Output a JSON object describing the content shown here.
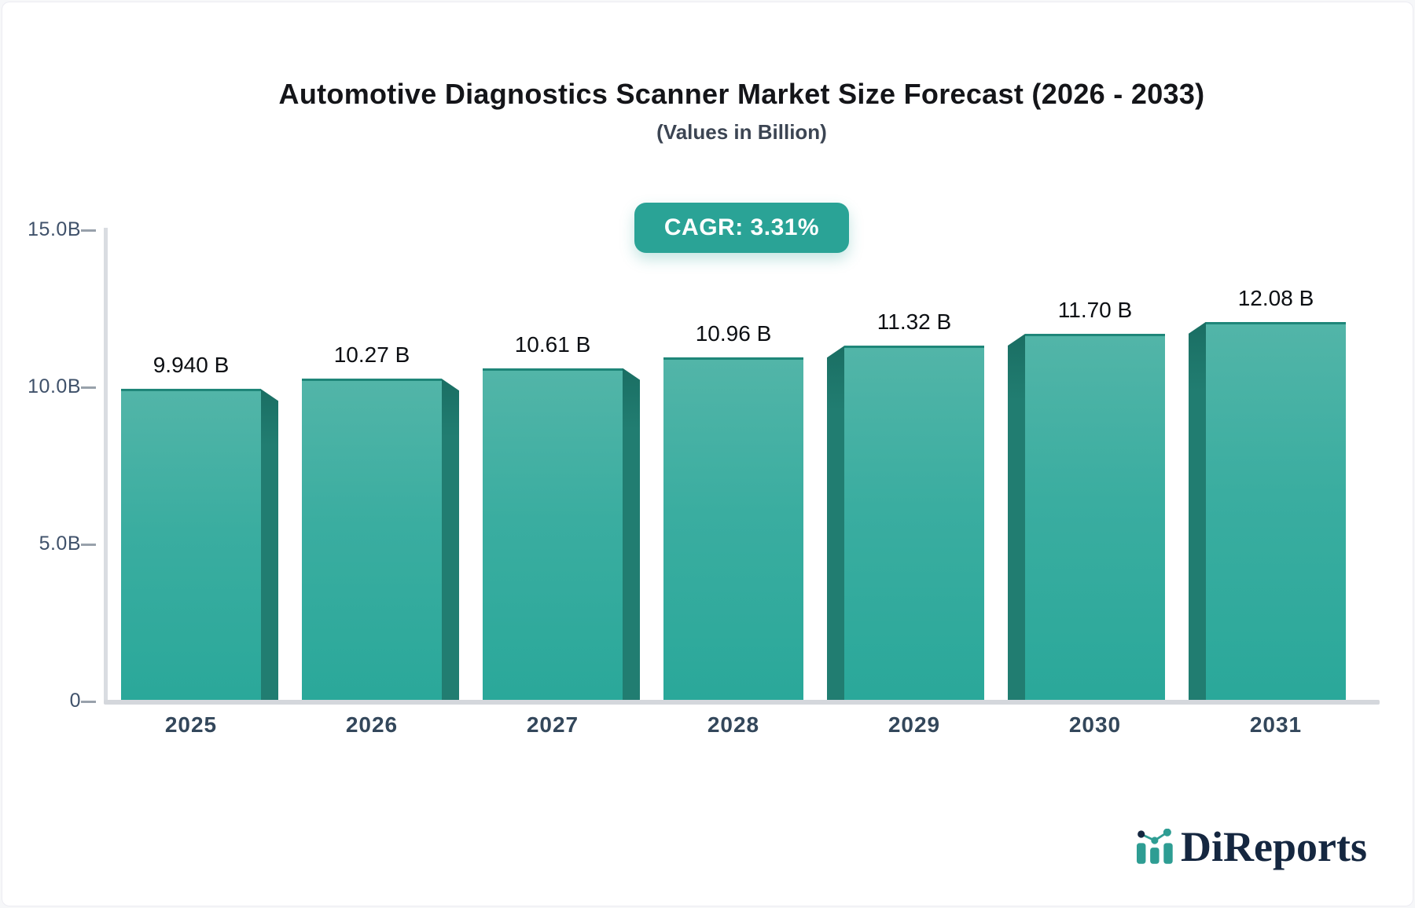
{
  "header": {
    "title": "Automotive Diagnostics Scanner Market Size Forecast (2026 - 2033)",
    "subtitle": "(Values in Billion)",
    "cagr_label": "CAGR: 3.31%"
  },
  "chart_data": {
    "type": "bar",
    "title": "Automotive Diagnostics Scanner Market Size Forecast (2026 - 2033)",
    "subtitle": "(Values in Billion)",
    "categories": [
      "2025",
      "2026",
      "2027",
      "2028",
      "2029",
      "2030",
      "2031"
    ],
    "values": [
      9.94,
      10.27,
      10.61,
      10.96,
      11.32,
      11.7,
      12.08
    ],
    "value_labels": [
      "9.940 B",
      "10.27 B",
      "10.61 B",
      "10.96 B",
      "11.32 B",
      "11.70 B",
      "12.08 B"
    ],
    "xlabel": "",
    "ylabel": "",
    "ylim": [
      0,
      15
    ],
    "yticks": [
      {
        "label": "15.0B",
        "value": 15
      },
      {
        "label": "10.0B",
        "value": 10
      },
      {
        "label": "5.0B",
        "value": 5
      },
      {
        "label": "0",
        "value": 0
      }
    ],
    "grid": false,
    "legend": false,
    "annotation": "CAGR: 3.31%",
    "bar_face_color_top": "#52b5a8",
    "bar_face_color_bottom": "#2aa89a",
    "bar_side_color": "#217d71",
    "bar_top_edge_color": "#1f8679"
  },
  "footer": {
    "brand": "DiReports"
  },
  "colors": {
    "accent_teal": "#2aa396",
    "badge_bg": "#2aa396",
    "badge_text": "#ffffff",
    "axis_line": "#d6d9de",
    "tick_text": "#3f516a",
    "year_text": "#33475b",
    "value_text": "#0c0f13",
    "title_text": "#141519",
    "subtitle_text": "#3c4553",
    "logo_navy": "#152740",
    "logo_teal": "#2e9d93"
  }
}
